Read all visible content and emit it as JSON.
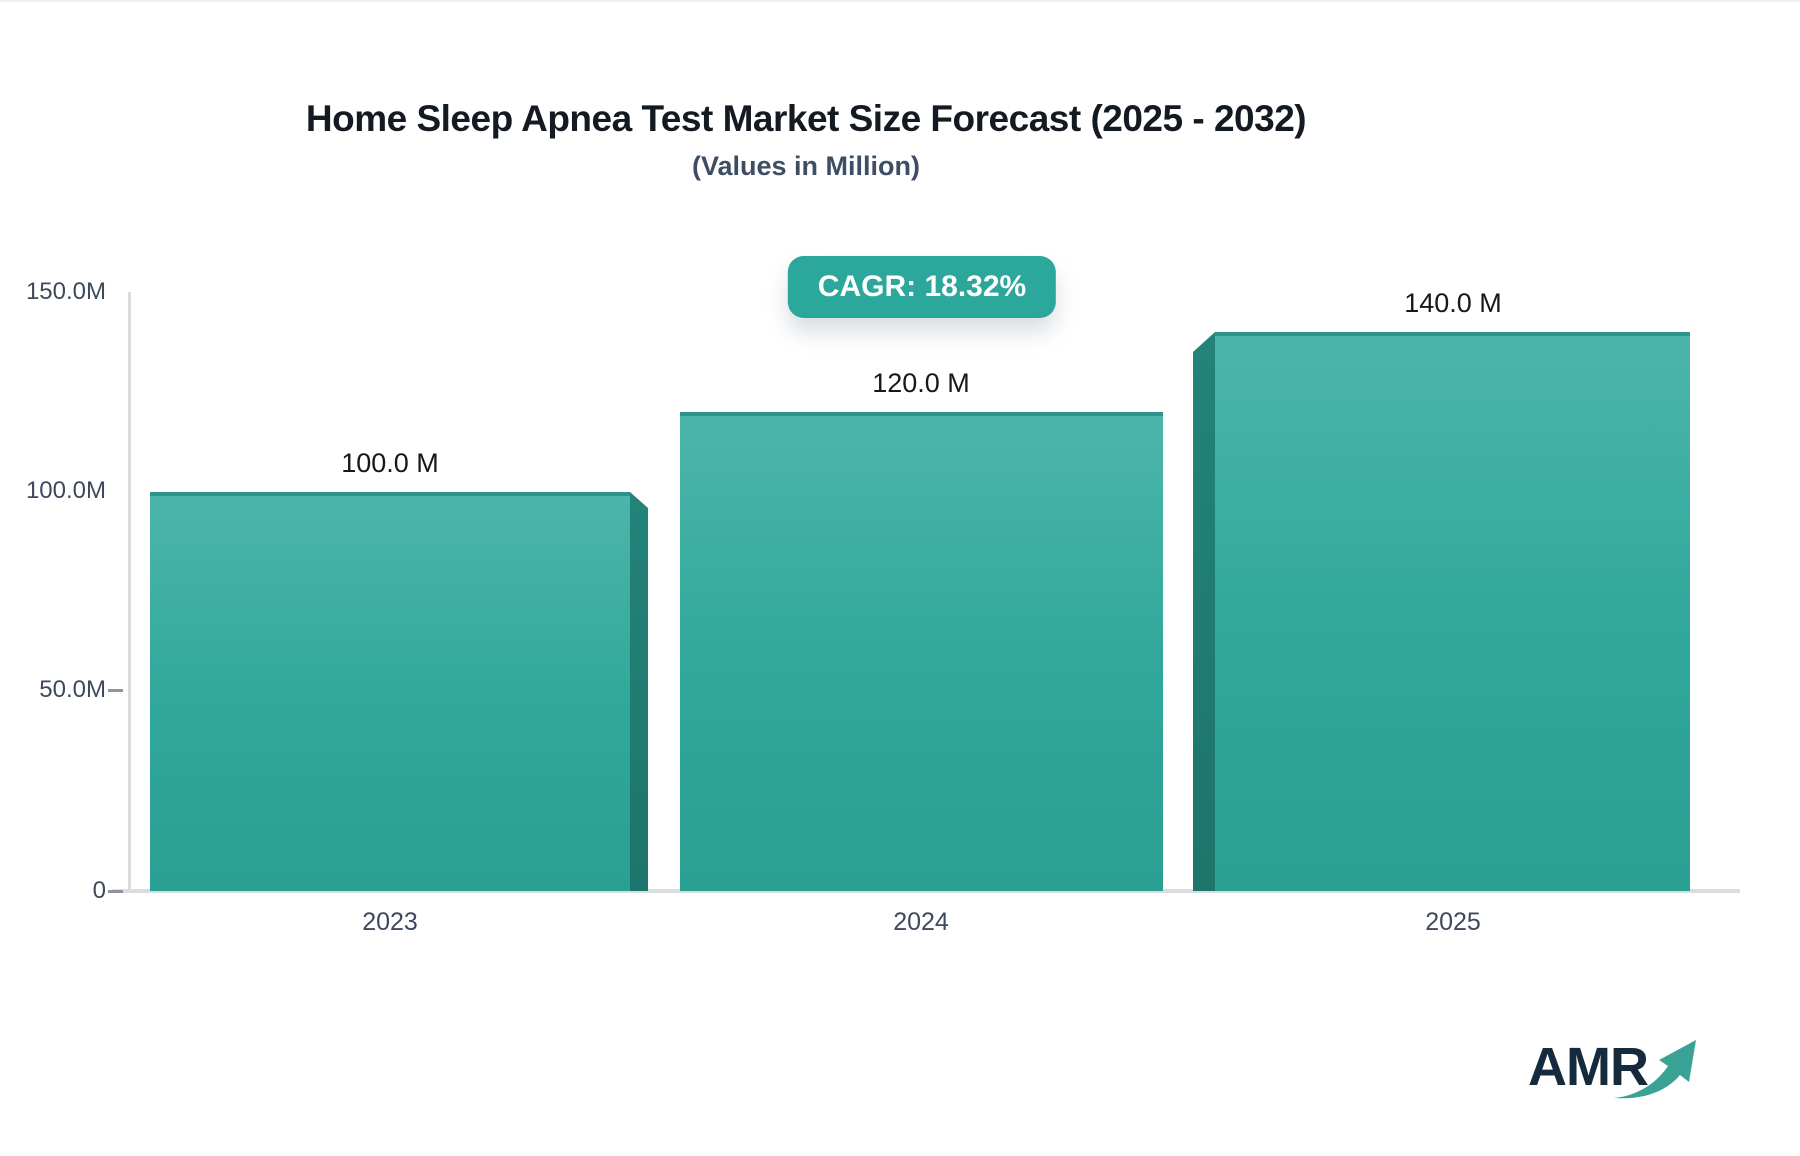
{
  "header": {
    "title": "Home Sleep Apnea Test Market Size Forecast (2025 - 2032)",
    "subtitle": "(Values in Million)",
    "cagr_label": "CAGR: 18.32%"
  },
  "chart_data": {
    "type": "bar",
    "title": "Home Sleep Apnea Test Market Size Forecast (2025 - 2032)",
    "subtitle": "(Values in Million)",
    "cagr_percent": 18.32,
    "categories": [
      "2023",
      "2024",
      "2025"
    ],
    "values": [
      100.0,
      120.0,
      140.0
    ],
    "value_labels": [
      "100.0 M",
      "120.0 M",
      "140.0 M"
    ],
    "ylim": [
      0,
      150
    ],
    "y_tick_labels": [
      "150.0M",
      "100.0M",
      "50.0M",
      "0"
    ],
    "grid": "off",
    "legend": "none",
    "bar_color": "#2fa79a",
    "bar_edge_color": "#1d756c"
  },
  "colors": {
    "badge_background": "#2ca79c",
    "badge_text": "#ffffff",
    "title_text": "#131a22",
    "subtitle_text": "#3d4d63",
    "axis_text": "#3d4a5c",
    "axis_line": "#dadce0",
    "logo_navy": "#152a3c",
    "logo_teal": "#3aa294"
  },
  "logo": {
    "text": "AMR",
    "icon": "growth-arrow-icon"
  }
}
